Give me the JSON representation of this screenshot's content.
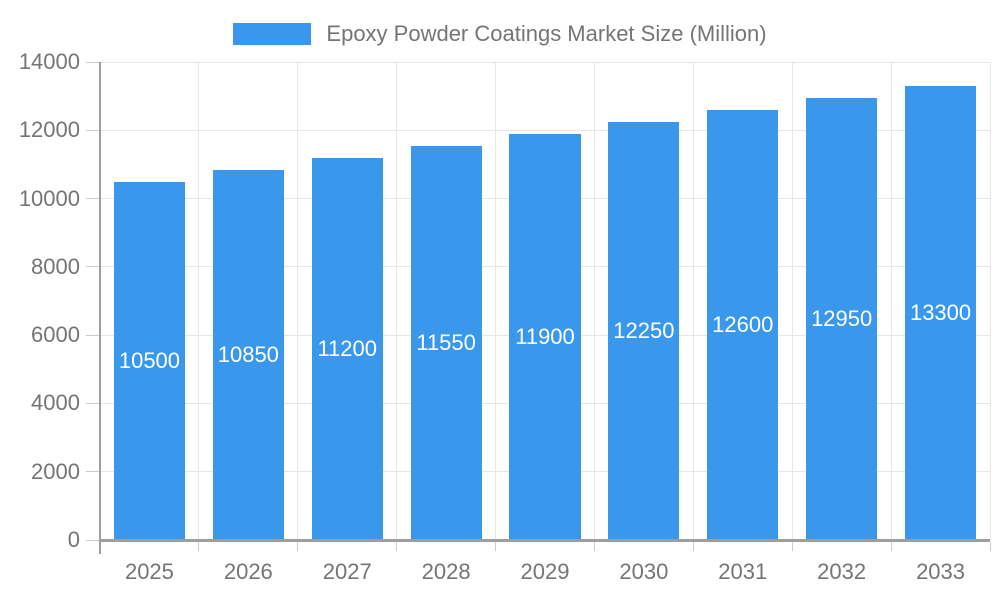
{
  "chart_data": {
    "type": "bar",
    "title": "Epoxy Powder Coatings Market Size (Million)",
    "categories": [
      "2025",
      "2026",
      "2027",
      "2028",
      "2029",
      "2030",
      "2031",
      "2032",
      "2033"
    ],
    "values": [
      10500,
      10850,
      11200,
      11550,
      11900,
      12250,
      12600,
      12950,
      13300
    ],
    "bar_value_labels": [
      "10500",
      "10850",
      "11200",
      "11550",
      "11900",
      "12250",
      "12600",
      "12950",
      "13300"
    ],
    "xlabel": "",
    "ylabel": "",
    "ylim": [
      0,
      14000
    ],
    "ytick_step": 2000,
    "ytick_labels": [
      "0",
      "2000",
      "4000",
      "6000",
      "8000",
      "10000",
      "12000",
      "14000"
    ],
    "grid": true,
    "legend": {
      "position": "top",
      "label": "Epoxy Powder Coatings Market Size (Million)"
    },
    "colors": {
      "bar": "#3A98EC",
      "bar_label_text": "#ffffff",
      "axis_text": "#757575",
      "grid_line": "#e6e6e6",
      "axis_line": "#9e9e9e",
      "tick": "#cccccc",
      "background": "#ffffff"
    }
  }
}
